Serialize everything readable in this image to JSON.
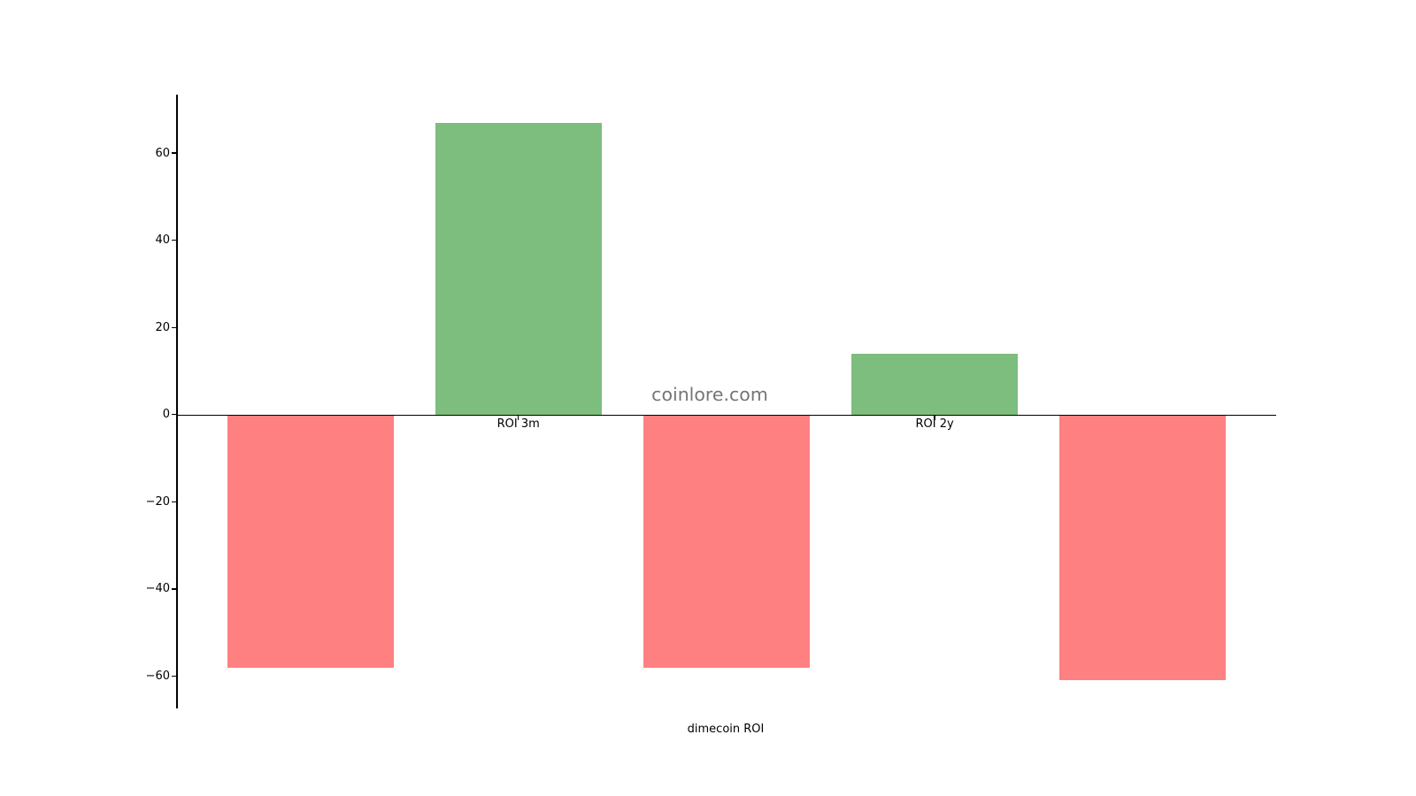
{
  "watermark": {
    "text": "coinlore.com",
    "color": "#757575"
  },
  "chart_data": {
    "type": "bar",
    "xlabel": "dimecoin ROI",
    "categories": [
      "",
      "ROI 3m",
      "",
      "ROI 2y",
      ""
    ],
    "values": [
      -58,
      67,
      -58,
      14,
      -61
    ],
    "bar_colors": [
      "#ff8080",
      "#7dbd7d",
      "#ff8080",
      "#7dbd7d",
      "#ff8080"
    ],
    "positive_color": "#7dbd7d",
    "negative_color": "#ff8080",
    "yticks": [
      60,
      40,
      20,
      0,
      -20,
      -40,
      -60
    ],
    "ylim": [
      -67.4,
      73.4
    ],
    "grid": false,
    "legend": null,
    "axis_color": "#000000",
    "watermark_text": "coinlore.com"
  }
}
